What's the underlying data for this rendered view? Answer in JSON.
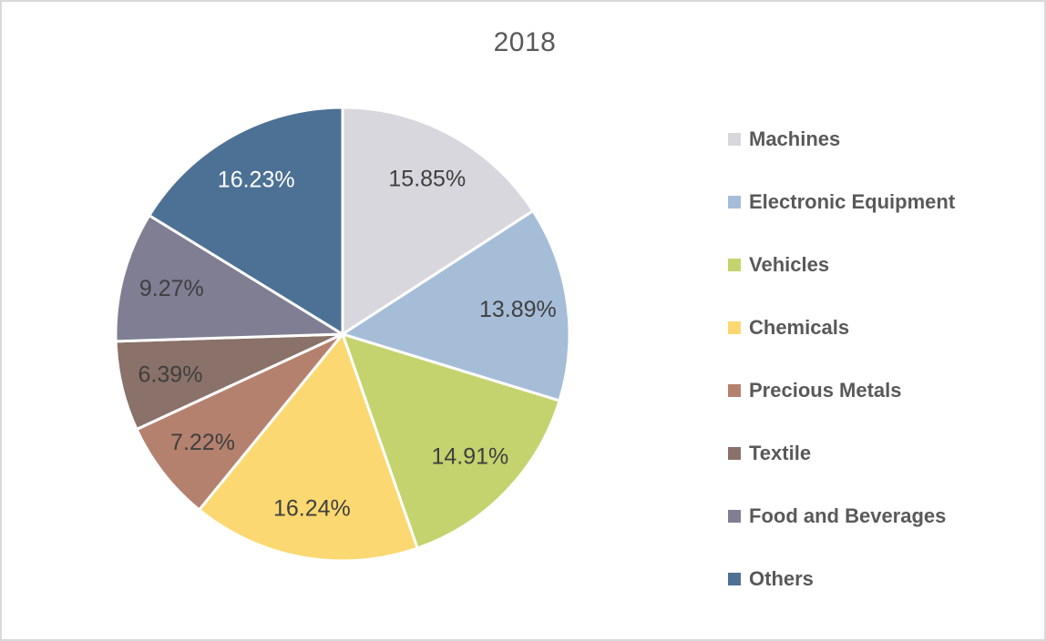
{
  "chart_data": {
    "type": "pie",
    "title": "2018",
    "legend_position": "right",
    "value_unit": "%",
    "slices": [
      {
        "name": "Machines",
        "value": 15.85,
        "label": "15.85%",
        "color": "#d8d7de",
        "label_color": "#3f3f3f"
      },
      {
        "name": "Electronic Equipment",
        "value": 13.89,
        "label": "13.89%",
        "color": "#a6bdd8",
        "label_color": "#3f3f3f"
      },
      {
        "name": "Vehicles",
        "value": 14.91,
        "label": "14.91%",
        "color": "#c5d36e",
        "label_color": "#3f3f3f"
      },
      {
        "name": "Chemicals",
        "value": 16.24,
        "label": "16.24%",
        "color": "#fbd871",
        "label_color": "#3f3f3f"
      },
      {
        "name": "Precious Metals",
        "value": 7.22,
        "label": "7.22%",
        "color": "#b5816f",
        "label_color": "#3f3f3f"
      },
      {
        "name": "Textile",
        "value": 6.39,
        "label": "6.39%",
        "color": "#8a7169",
        "label_color": "#3f3f3f"
      },
      {
        "name": "Food and Beverages",
        "value": 9.27,
        "label": "9.27%",
        "color": "#7f7e93",
        "label_color": "#3f3f3f"
      },
      {
        "name": "Others",
        "value": 16.23,
        "label": "16.23%",
        "color": "#4d7195",
        "label_color": "#ffffff"
      }
    ]
  }
}
